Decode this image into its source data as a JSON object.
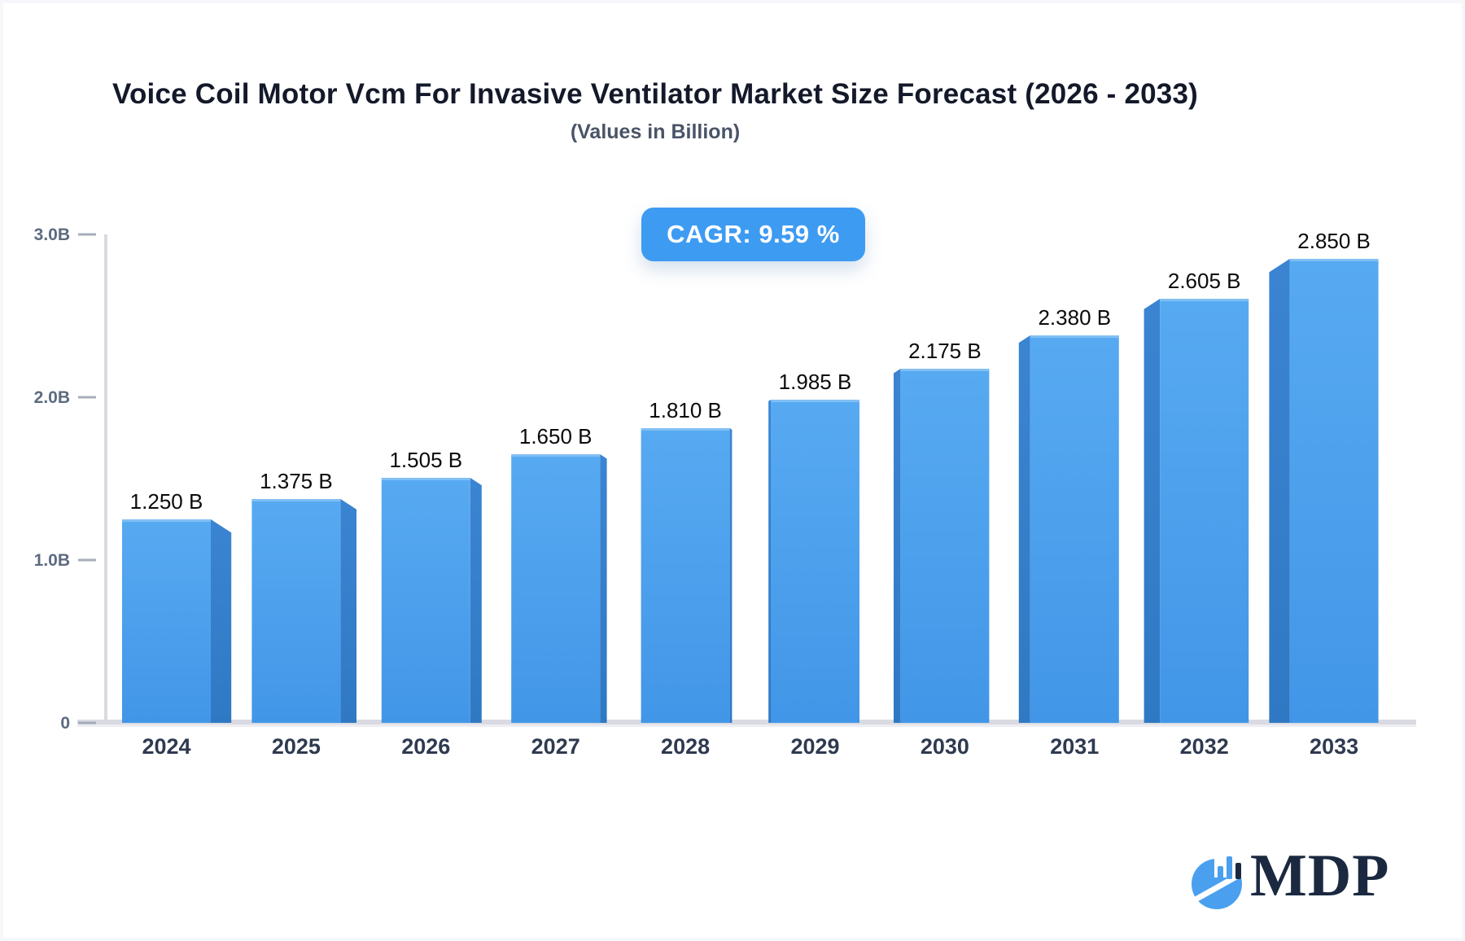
{
  "page": {
    "background": "#ffffff",
    "frame_border_color": "#f6f7fa"
  },
  "header": {
    "title": "Voice Coil Motor Vcm For Invasive Ventilator Market Size Forecast (2026 - 2033)",
    "subtitle": "(Values in Billion)"
  },
  "badge": {
    "label": "CAGR: 9.59 %",
    "bg": "#3d9bf2",
    "text_color": "#ffffff"
  },
  "chart_data": {
    "type": "bar",
    "title": "Voice Coil Motor Vcm For Invasive Ventilator Market Size Forecast (2026 - 2033)",
    "subtitle": "(Values in Billion)",
    "categories": [
      "2024",
      "2025",
      "2026",
      "2027",
      "2028",
      "2029",
      "2030",
      "2031",
      "2032",
      "2033"
    ],
    "values": [
      1.25,
      1.375,
      1.505,
      1.65,
      1.81,
      1.985,
      2.175,
      2.38,
      2.605,
      2.85
    ],
    "value_labels": [
      "1.250 B",
      "1.375 B",
      "1.505 B",
      "1.650 B",
      "1.810 B",
      "1.985 B",
      "2.175 B",
      "2.380 B",
      "2.605 B",
      "2.850 B"
    ],
    "xlabel": "",
    "ylabel": "",
    "ylim": [
      0,
      3.0
    ],
    "yticks": [
      {
        "label": "3.0B",
        "value": 3.0
      },
      {
        "label": "2.0B",
        "value": 2.0
      },
      {
        "label": "1.0B",
        "value": 1.0
      },
      {
        "label": "0",
        "value": 0.0
      }
    ],
    "grid": false,
    "legend": "none",
    "bar_style": "3d-perspective",
    "colors": {
      "bar_face_top": "#57aaf1",
      "bar_face_bottom": "#4296e7",
      "bar_side": "#2f79c4",
      "bar_top_highlight": "#8cc4f5",
      "axis_line": "#dadbe2",
      "tick_mark": "#a7adb8",
      "tick_text": "#5c6b80",
      "category_text": "#2f3a50",
      "value_text": "#0b0b0b"
    }
  },
  "logo": {
    "text": "MDP",
    "icon": "pie-bar-chart-icon",
    "text_color": "#1b2940",
    "icon_color": "#4aa0ee",
    "icon_dark": "#1b2940"
  }
}
